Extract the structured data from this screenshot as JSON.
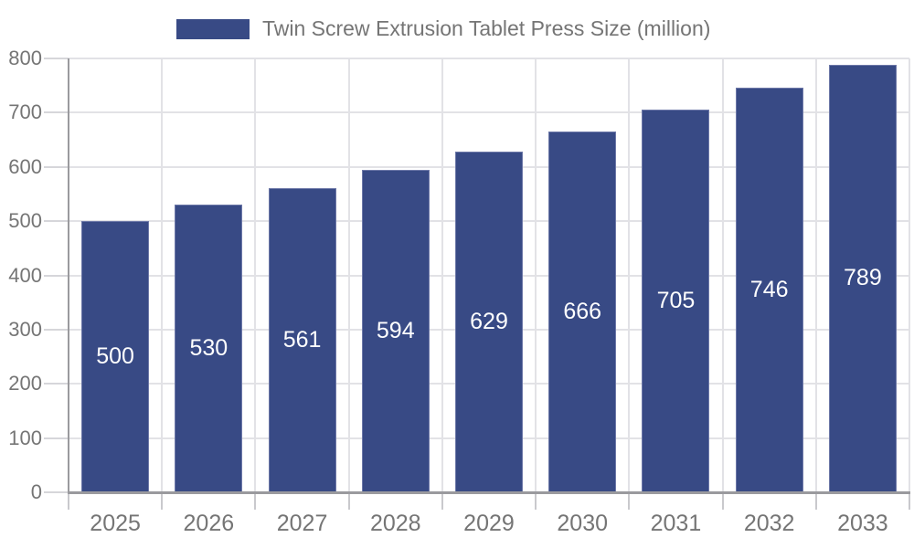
{
  "legend": {
    "label": "Twin Screw Extrusion Tablet Press Size (million)",
    "swatch_color": "#384a85"
  },
  "chart_data": {
    "type": "bar",
    "title": "",
    "categories": [
      "2025",
      "2026",
      "2027",
      "2028",
      "2029",
      "2030",
      "2031",
      "2032",
      "2033"
    ],
    "series": [
      {
        "name": "Twin Screw Extrusion Tablet Press Size (million)",
        "values": [
          500,
          530,
          561,
          594,
          629,
          666,
          705,
          746,
          789
        ]
      }
    ],
    "xlabel": "",
    "ylabel": "",
    "ylim": [
      0,
      800
    ],
    "y_ticks": [
      0,
      100,
      200,
      300,
      400,
      500,
      600,
      700,
      800
    ],
    "grid": true,
    "legend_position": "top-center",
    "bar_color": "#384a85",
    "bar_label_color": "#ffffff",
    "axis_color": "#9a9a9e",
    "gridline_color": "#e2e2e6",
    "tick_label_color": "#757575"
  }
}
